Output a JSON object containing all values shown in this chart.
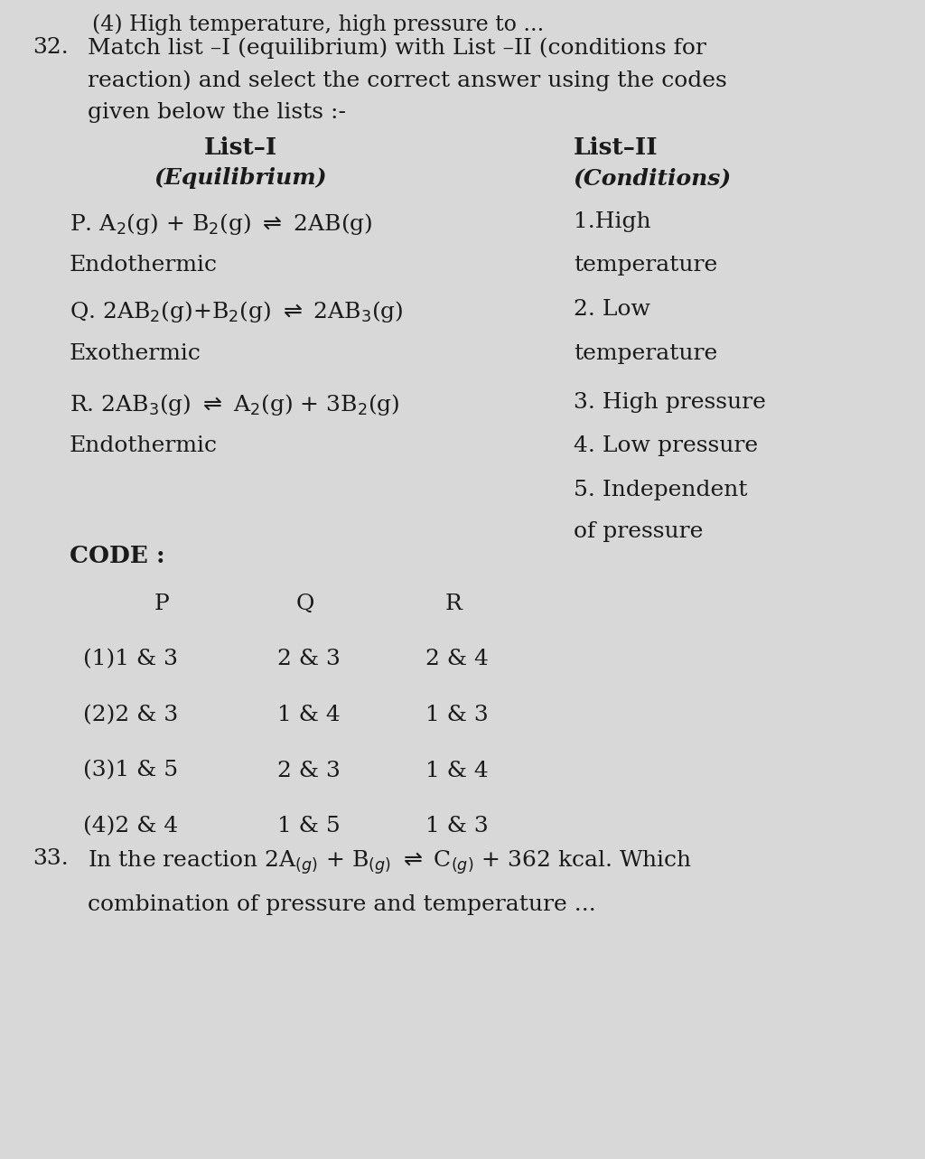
{
  "bg_color": "#d8d8d8",
  "text_color": "#1a1a1a",
  "figsize": [
    10.24,
    12.83
  ],
  "dpi": 100
}
